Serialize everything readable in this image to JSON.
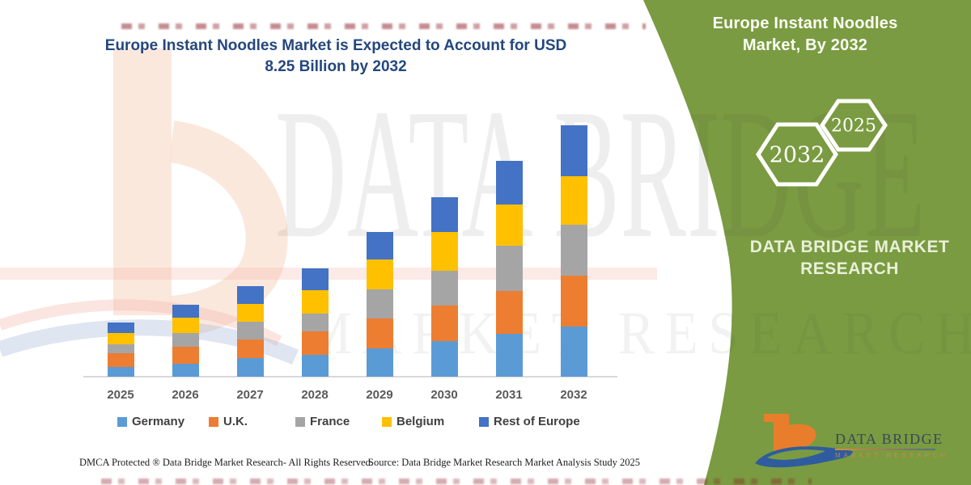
{
  "main_title": {
    "line1": "Europe Instant Noodles Market is Expected to Account for USD",
    "line2": "8.25 Billion by 2032"
  },
  "chart_data": {
    "type": "bar",
    "stacked": true,
    "title": "Europe Instant Noodles Market is Expected to Account for USD 8.25 Billion by 2032",
    "unit": "USD Billion",
    "categories": [
      "2025",
      "2026",
      "2027",
      "2028",
      "2029",
      "2030",
      "2031",
      "2032"
    ],
    "series": [
      {
        "name": "Germany",
        "color": "#5B9BD5",
        "values": [
          0.32,
          0.42,
          0.6,
          0.73,
          0.93,
          1.17,
          1.41,
          1.64
        ]
      },
      {
        "name": "U.K.",
        "color": "#ED7D31",
        "values": [
          0.45,
          0.56,
          0.61,
          0.75,
          0.98,
          1.17,
          1.4,
          1.67
        ]
      },
      {
        "name": "France",
        "color": "#A5A5A5",
        "values": [
          0.29,
          0.45,
          0.6,
          0.6,
          0.95,
          1.14,
          1.48,
          1.67
        ]
      },
      {
        "name": "Belgium",
        "color": "#FFC000",
        "values": [
          0.37,
          0.5,
          0.58,
          0.77,
          0.98,
          1.27,
          1.36,
          1.6
        ]
      },
      {
        "name": "Rest of Europe",
        "color": "#4472C4",
        "values": [
          0.34,
          0.42,
          0.58,
          0.71,
          0.9,
          1.14,
          1.43,
          1.67
        ]
      }
    ],
    "totals": [
      1.77,
      2.35,
      2.97,
      3.56,
      4.74,
      5.89,
      7.08,
      8.25
    ],
    "ylim": [
      0,
      8.25
    ],
    "grid": false,
    "legend_position": "bottom",
    "xlabel": "",
    "ylabel": ""
  },
  "side_panel": {
    "title_line1": "Europe Instant Noodles",
    "title_line2": "Market, By 2032",
    "hexagon_large": "2032",
    "hexagon_small": "2025",
    "brand_line1": "DATA BRIDGE MARKET",
    "brand_line2": "RESEARCH",
    "green_color": "#7A9B41"
  },
  "logo": {
    "name_text": "DATA BRIDGE",
    "sub_text": "MARKET RESEARCH"
  },
  "watermark": {
    "big_text": "DATA BRIDGE",
    "row_text": "MARKET RESEARCH"
  },
  "footer": {
    "dmca": "DMCA Protected ® Data Bridge Market Research-  All Rights Reserved.",
    "source": "Source: Data Bridge Market Research  Market Analysis Study 2025"
  }
}
